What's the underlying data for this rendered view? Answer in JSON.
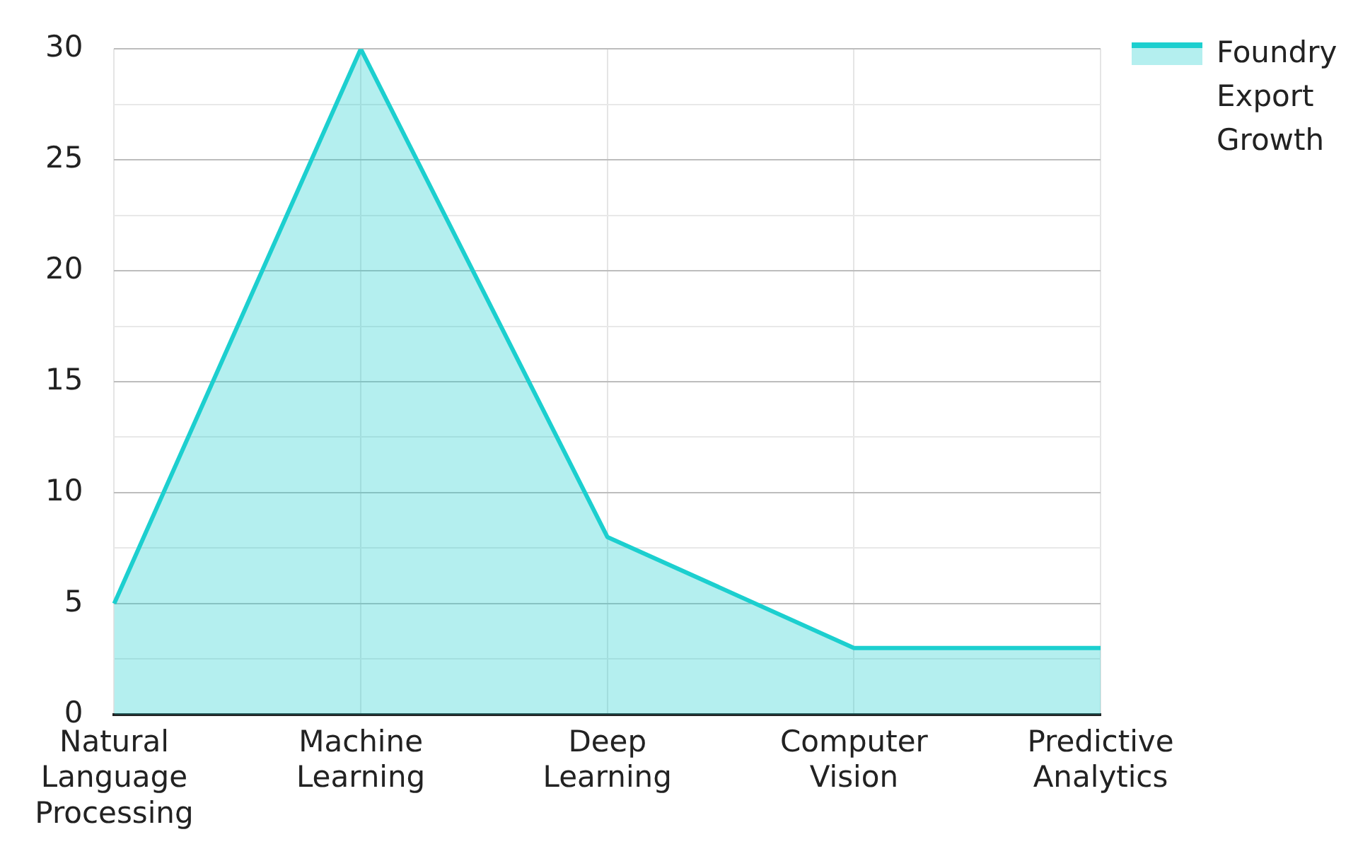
{
  "chart_data": {
    "type": "area",
    "categories": [
      "Natural Language Processing",
      "Machine Learning",
      "Deep Learning",
      "Computer Vision",
      "Predictive Analytics"
    ],
    "series": [
      {
        "name": "Foundry Export Growth",
        "color": "#1ccfcf",
        "values": [
          5,
          30,
          8,
          3,
          3
        ]
      }
    ],
    "ylim": [
      0,
      30
    ],
    "yticks": [
      0,
      {
        "value": 2.5,
        "label": null
      },
      5,
      {
        "value": 7.5,
        "label": null
      },
      10,
      {
        "value": 12.5,
        "label": null
      },
      15,
      {
        "value": 17.5,
        "label": null
      },
      20,
      {
        "value": 22.5,
        "label": null
      },
      25,
      {
        "value": 27.5,
        "label": null
      },
      30
    ],
    "grid": true,
    "legend": "top right",
    "marker": "none",
    "line_style": "solid"
  }
}
